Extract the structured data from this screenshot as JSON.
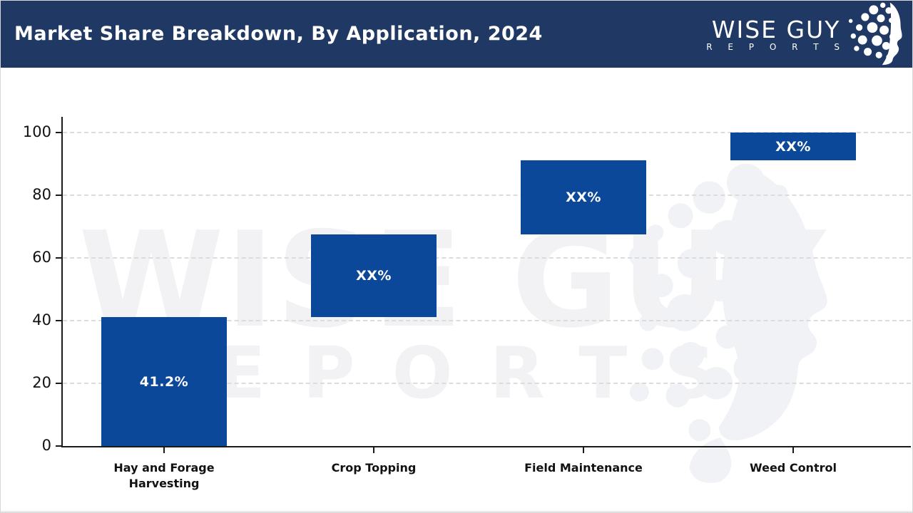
{
  "header": {
    "title": "Market Share Breakdown, By Application, 2024",
    "bg_color": "#203864",
    "logo": {
      "line1": "WISE GUY",
      "line2": "R E P O R T S"
    }
  },
  "watermark": {
    "line1": "WISE GUY",
    "line2": "REPORTS"
  },
  "chart_data": {
    "type": "bar",
    "subtype": "floating-waterfall",
    "title": "Market Share Breakdown, By Application, 2024",
    "categories": [
      "Hay and Forage Harvesting",
      "Crop Topping",
      "Field Maintenance",
      "Weed Control"
    ],
    "series": [
      {
        "name": "Market Share %",
        "segments": [
          {
            "category": "Hay and Forage Harvesting",
            "start": 0,
            "end": 41.2,
            "label": "41.2%"
          },
          {
            "category": "Crop Topping",
            "start": 41.2,
            "end": 67.6,
            "label": "XX%"
          },
          {
            "category": "Field Maintenance",
            "start": 67.6,
            "end": 91.2,
            "label": "XX%"
          },
          {
            "category": "Weed Control",
            "start": 91.2,
            "end": 100,
            "label": "XX%"
          }
        ]
      }
    ],
    "xlabel": "",
    "ylabel": "",
    "ylim": [
      0,
      100
    ],
    "yticks": [
      0,
      20,
      40,
      60,
      80,
      100
    ],
    "grid": "horizontal-dashed",
    "legend": "none",
    "bar_color": "#0b4899",
    "bar_label_color": "#ffffff"
  }
}
